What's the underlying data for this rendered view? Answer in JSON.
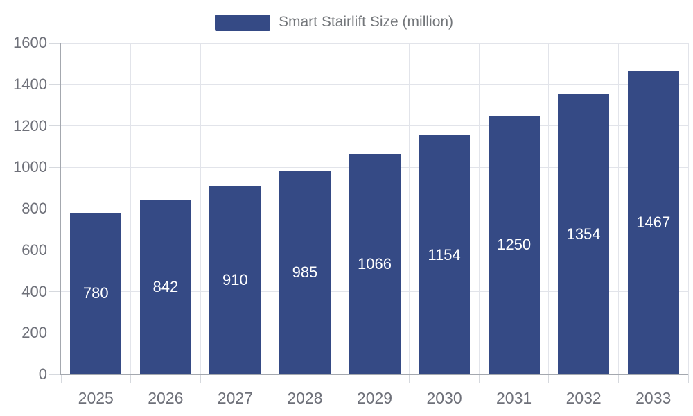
{
  "chart_data": {
    "type": "bar",
    "title": "",
    "categories": [
      "2025",
      "2026",
      "2027",
      "2028",
      "2029",
      "2030",
      "2031",
      "2032",
      "2033"
    ],
    "series": [
      {
        "name": "Smart Stairlift Size (million)",
        "values": [
          780,
          842,
          910,
          985,
          1066,
          1154,
          1250,
          1354,
          1467
        ]
      }
    ],
    "xlabel": "",
    "ylabel": "",
    "ylim": [
      0,
      1600
    ],
    "ytick_step": 200,
    "grid": true,
    "legend_position": "top-center",
    "bar_label_position": "inside-center",
    "colors": {
      "bar_color": "#354a85",
      "bar_label_color": "#ffffff",
      "axis_label_color": "#6e7079",
      "legend_text_color": "#73767a",
      "grid_color": "#e2e4ea",
      "tick_color": "#d6d9de",
      "axis_line_color": "#a4a8af"
    }
  }
}
